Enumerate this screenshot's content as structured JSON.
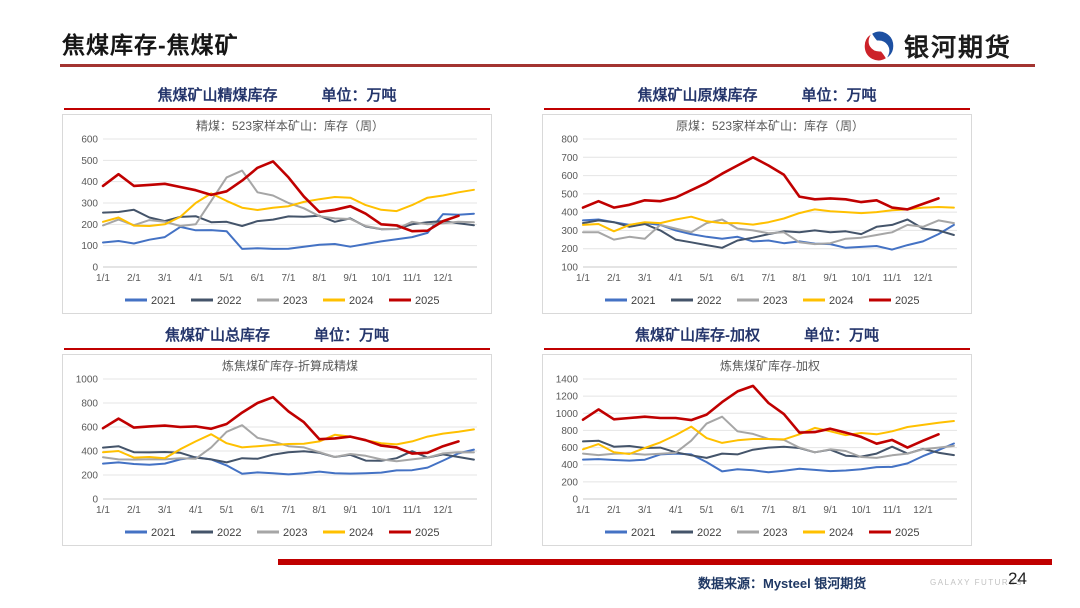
{
  "header": {
    "title": "焦煤库存-焦煤矿",
    "logo_text": "银河期货"
  },
  "footer": {
    "source": "数据来源：Mysteel 银河期货",
    "brand": "GALAXY FUTURES",
    "page": "24"
  },
  "colors": {
    "accent_red": "#C00000",
    "title_blue": "#24356B",
    "s2021": "#4472C4",
    "s2022": "#44546A",
    "s2023": "#A6A6A6",
    "s2024": "#FFC000",
    "s2025": "#C00000"
  },
  "chart_data": [
    {
      "type": "line",
      "panel_title": "焦煤矿山精煤库存",
      "unit_label": "单位：万吨",
      "inner_title": "精煤：523家样本矿山：库存（周）",
      "ylim": [
        0,
        600
      ],
      "ystep": 100,
      "y_tick_labels": [
        "0",
        "100",
        "200",
        "300",
        "400",
        "500",
        "600"
      ],
      "x_tick_labels": [
        "1/1",
        "2/1",
        "3/1",
        "4/1",
        "5/1",
        "6/1",
        "7/1",
        "8/1",
        "9/1",
        "10/1",
        "11/1",
        "12/1"
      ],
      "grid": true,
      "legend_position": "bottom",
      "series": [
        {
          "name": "2021",
          "color": "#4472C4",
          "values": [
            115,
            122,
            110,
            128,
            140,
            188,
            172,
            173,
            168,
            85,
            88,
            85,
            86,
            95,
            104,
            108,
            95,
            108,
            120,
            130,
            140,
            160,
            248,
            245,
            250
          ]
        },
        {
          "name": "2022",
          "color": "#44546A",
          "values": [
            255,
            258,
            268,
            232,
            215,
            235,
            238,
            210,
            212,
            192,
            215,
            222,
            237,
            236,
            240,
            212,
            228,
            190,
            177,
            178,
            200,
            210,
            215,
            205,
            196
          ]
        },
        {
          "name": "2023",
          "color": "#A6A6A6",
          "values": [
            195,
            222,
            196,
            220,
            212,
            192,
            200,
            310,
            420,
            452,
            350,
            335,
            300,
            275,
            238,
            228,
            225,
            192,
            178,
            178,
            212,
            200,
            205,
            212,
            210
          ]
        },
        {
          "name": "2024",
          "color": "#FFC000",
          "values": [
            212,
            232,
            194,
            192,
            200,
            235,
            300,
            345,
            310,
            278,
            267,
            278,
            285,
            305,
            318,
            328,
            325,
            290,
            268,
            262,
            290,
            325,
            335,
            350,
            362
          ]
        },
        {
          "name": "2025",
          "color": "#C00000",
          "values": [
            380,
            435,
            380,
            385,
            390,
            375,
            360,
            338,
            355,
            405,
            465,
            495,
            420,
            330,
            258,
            268,
            285,
            250,
            200,
            195,
            168,
            170,
            215,
            240
          ]
        }
      ]
    },
    {
      "type": "line",
      "panel_title": "焦煤矿山原煤库存",
      "unit_label": "单位：万吨",
      "inner_title": "原煤：523家样本矿山：库存（周）",
      "ylim": [
        100,
        800
      ],
      "ystep": 100,
      "y_tick_labels": [
        "100",
        "200",
        "300",
        "400",
        "500",
        "600",
        "700",
        "800"
      ],
      "x_tick_labels": [
        "1/1",
        "2/1",
        "3/1",
        "4/1",
        "5/1",
        "6/1",
        "7/1",
        "8/1",
        "9/1",
        "10/1",
        "11/1",
        "12/1"
      ],
      "grid": true,
      "legend_position": "bottom",
      "series": [
        {
          "name": "2021",
          "color": "#4472C4",
          "values": [
            355,
            360,
            345,
            330,
            340,
            330,
            300,
            280,
            265,
            255,
            265,
            240,
            245,
            230,
            240,
            228,
            225,
            205,
            210,
            215,
            195,
            220,
            240,
            280,
            330
          ]
        },
        {
          "name": "2022",
          "color": "#44546A",
          "values": [
            340,
            355,
            345,
            320,
            335,
            300,
            250,
            235,
            220,
            205,
            245,
            260,
            280,
            295,
            290,
            300,
            290,
            295,
            280,
            320,
            330,
            360,
            310,
            300,
            275
          ]
        },
        {
          "name": "2023",
          "color": "#A6A6A6",
          "values": [
            290,
            290,
            250,
            265,
            255,
            330,
            310,
            290,
            340,
            360,
            310,
            300,
            285,
            290,
            235,
            225,
            230,
            255,
            260,
            275,
            290,
            330,
            320,
            355,
            340
          ]
        },
        {
          "name": "2024",
          "color": "#FFC000",
          "values": [
            330,
            335,
            295,
            330,
            345,
            340,
            360,
            375,
            350,
            340,
            340,
            332,
            345,
            365,
            395,
            415,
            405,
            400,
            395,
            400,
            410,
            415,
            425,
            428,
            425
          ]
        },
        {
          "name": "2025",
          "color": "#C00000",
          "values": [
            425,
            460,
            425,
            440,
            465,
            460,
            480,
            520,
            560,
            610,
            655,
            700,
            655,
            605,
            485,
            470,
            475,
            470,
            455,
            465,
            425,
            415,
            445,
            475
          ]
        }
      ]
    },
    {
      "type": "line",
      "panel_title": "焦煤矿山总库存",
      "unit_label": "单位：万吨",
      "inner_title": "炼焦煤矿库存-折算成精煤",
      "ylim": [
        0,
        1000
      ],
      "ystep": 200,
      "y_tick_labels": [
        "0",
        "200",
        "400",
        "600",
        "800",
        "1000"
      ],
      "x_tick_labels": [
        "1/1",
        "2/1",
        "3/1",
        "4/1",
        "5/1",
        "6/1",
        "7/1",
        "8/1",
        "9/1",
        "10/1",
        "11/1",
        "12/1"
      ],
      "grid": true,
      "legend_position": "bottom",
      "series": [
        {
          "name": "2021",
          "color": "#4472C4",
          "values": [
            295,
            305,
            292,
            285,
            295,
            330,
            348,
            330,
            280,
            210,
            222,
            215,
            205,
            215,
            228,
            215,
            212,
            215,
            220,
            238,
            240,
            262,
            320,
            380,
            412
          ]
        },
        {
          "name": "2022",
          "color": "#44546A",
          "values": [
            428,
            440,
            390,
            388,
            392,
            385,
            345,
            330,
            305,
            340,
            335,
            370,
            390,
            398,
            385,
            350,
            368,
            320,
            318,
            340,
            398,
            345,
            372,
            350,
            328
          ]
        },
        {
          "name": "2023",
          "color": "#A6A6A6",
          "values": [
            348,
            330,
            328,
            332,
            330,
            340,
            335,
            430,
            560,
            615,
            510,
            480,
            440,
            430,
            390,
            350,
            375,
            360,
            330,
            315,
            330,
            345,
            380,
            390,
            388
          ]
        },
        {
          "name": "2024",
          "color": "#FFC000",
          "values": [
            390,
            400,
            345,
            350,
            340,
            415,
            480,
            540,
            465,
            430,
            440,
            450,
            458,
            460,
            480,
            535,
            520,
            490,
            465,
            455,
            480,
            520,
            545,
            560,
            580
          ]
        },
        {
          "name": "2025",
          "color": "#C00000",
          "values": [
            590,
            670,
            595,
            605,
            612,
            600,
            605,
            585,
            625,
            720,
            800,
            848,
            730,
            640,
            498,
            505,
            520,
            490,
            445,
            430,
            378,
            385,
            440,
            480
          ]
        }
      ]
    },
    {
      "type": "line",
      "panel_title": "焦煤矿山库存-加权",
      "unit_label": "单位：万吨",
      "inner_title": "炼焦煤矿库存-加权",
      "ylim": [
        0,
        1400
      ],
      "ystep": 200,
      "y_tick_labels": [
        "0",
        "200",
        "400",
        "600",
        "800",
        "1000",
        "1200",
        "1400"
      ],
      "x_tick_labels": [
        "1/1",
        "2/1",
        "3/1",
        "4/1",
        "5/1",
        "6/1",
        "7/1",
        "8/1",
        "9/1",
        "10/1",
        "11/1",
        "12/1"
      ],
      "grid": true,
      "legend_position": "bottom",
      "series": [
        {
          "name": "2021",
          "color": "#4472C4",
          "values": [
            460,
            465,
            455,
            448,
            458,
            520,
            530,
            520,
            430,
            322,
            348,
            335,
            312,
            330,
            352,
            340,
            325,
            332,
            348,
            372,
            375,
            415,
            500,
            570,
            648
          ]
        },
        {
          "name": "2022",
          "color": "#44546A",
          "values": [
            672,
            680,
            610,
            618,
            595,
            600,
            545,
            510,
            480,
            530,
            520,
            575,
            600,
            610,
            595,
            545,
            575,
            505,
            495,
            530,
            610,
            530,
            585,
            540,
            512
          ]
        },
        {
          "name": "2023",
          "color": "#A6A6A6",
          "values": [
            530,
            512,
            528,
            532,
            518,
            528,
            540,
            680,
            880,
            960,
            790,
            760,
            700,
            690,
            600,
            545,
            580,
            560,
            490,
            480,
            510,
            530,
            580,
            600,
            620
          ]
        },
        {
          "name": "2024",
          "color": "#FFC000",
          "values": [
            580,
            640,
            545,
            525,
            595,
            660,
            745,
            845,
            710,
            655,
            685,
            700,
            700,
            695,
            755,
            830,
            790,
            745,
            770,
            755,
            790,
            840,
            865,
            890,
            910
          ]
        },
        {
          "name": "2025",
          "color": "#C00000",
          "values": [
            925,
            1045,
            930,
            945,
            960,
            945,
            945,
            920,
            985,
            1130,
            1255,
            1320,
            1120,
            990,
            775,
            780,
            820,
            775,
            725,
            645,
            690,
            600,
            680,
            755
          ]
        }
      ]
    }
  ]
}
